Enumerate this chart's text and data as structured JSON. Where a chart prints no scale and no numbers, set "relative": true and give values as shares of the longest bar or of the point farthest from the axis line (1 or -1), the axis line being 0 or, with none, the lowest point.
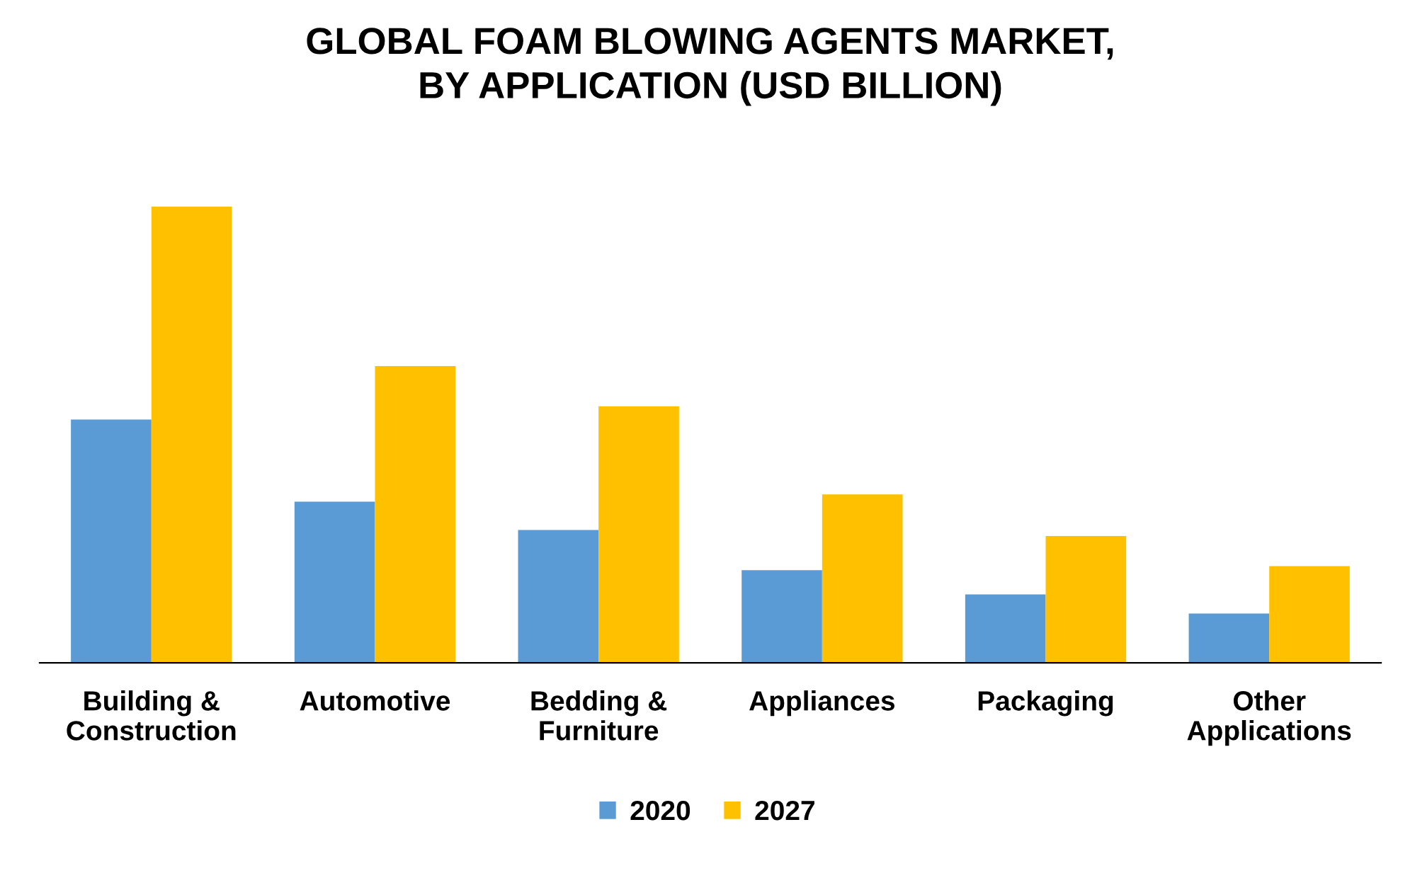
{
  "chart_data": {
    "type": "bar",
    "title": "GLOBAL FOAM BLOWING AGENTS MARKET,\nBY APPLICATION (USD BILLION)",
    "categories": [
      "Building &\nConstruction",
      "Automotive",
      "Bedding &\nFurniture",
      "Appliances",
      "Packaging",
      "Other\nApplications"
    ],
    "relative": true,
    "legend": "bottom",
    "grid": false,
    "series": [
      {
        "name": "2020",
        "color": "#5b9bd5",
        "values": [
          0.533,
          0.353,
          0.291,
          0.203,
          0.15,
          0.108
        ]
      },
      {
        "name": "2027",
        "color": "#ffc000",
        "values": [
          1.0,
          0.65,
          0.562,
          0.369,
          0.278,
          0.212
        ]
      }
    ]
  }
}
